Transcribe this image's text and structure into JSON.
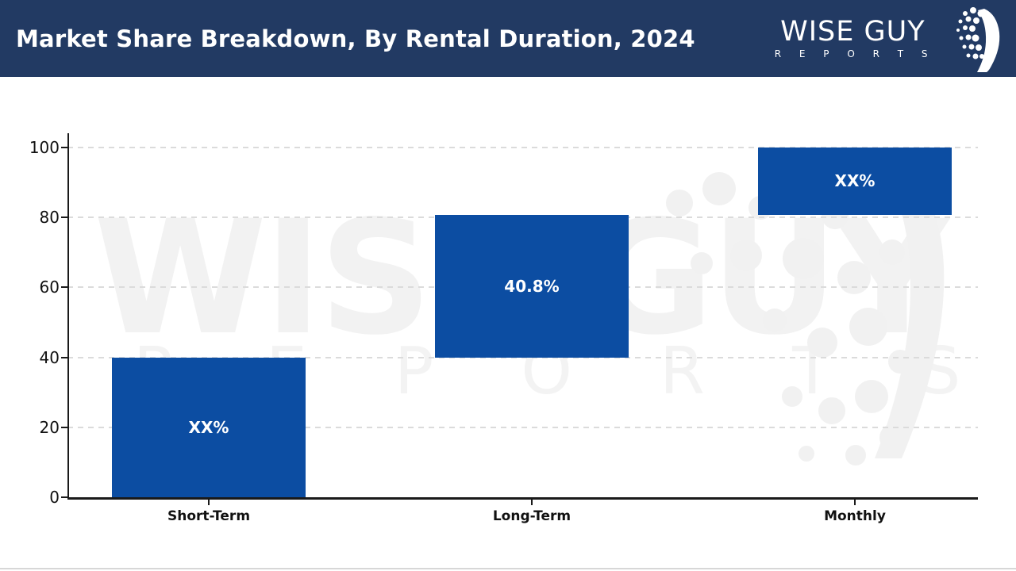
{
  "header": {
    "title": "Market Share Breakdown, By Rental Duration, 2024",
    "logo": {
      "line1": "WISE GUY",
      "line2": "R E P O R T S"
    }
  },
  "watermark": {
    "line1": "WISE GUY",
    "line2": "R E P O R T S"
  },
  "chart_data": {
    "type": "bar",
    "subtype": "waterfall",
    "title": "Market Share Breakdown, By Rental Duration, 2024",
    "categories": [
      "Short-Term",
      "Long-Term",
      "Monthly"
    ],
    "series": [
      {
        "name": "Market Share (%)",
        "segments": [
          {
            "category": "Short-Term",
            "start": 0,
            "end": 40,
            "label": "XX%"
          },
          {
            "category": "Long-Term",
            "start": 40,
            "end": 80.8,
            "label": "40.8%"
          },
          {
            "category": "Monthly",
            "start": 80.8,
            "end": 100,
            "label": "XX%"
          }
        ]
      }
    ],
    "ylim": [
      0,
      100
    ],
    "yticks": [
      0,
      20,
      40,
      60,
      80,
      100
    ],
    "xlabel": "",
    "ylabel": "",
    "grid": "horizontal-dashed",
    "legend_position": "none"
  },
  "colors": {
    "header_bg": "#223A63",
    "bar": "#0C4DA2",
    "bar_label": "#FFFFFF",
    "grid": "#DBDBDB",
    "axis": "#1A1A1A",
    "tick_label": "#111111",
    "watermark": "#F2F2F2",
    "bottom_rule": "#D7D7D7"
  }
}
